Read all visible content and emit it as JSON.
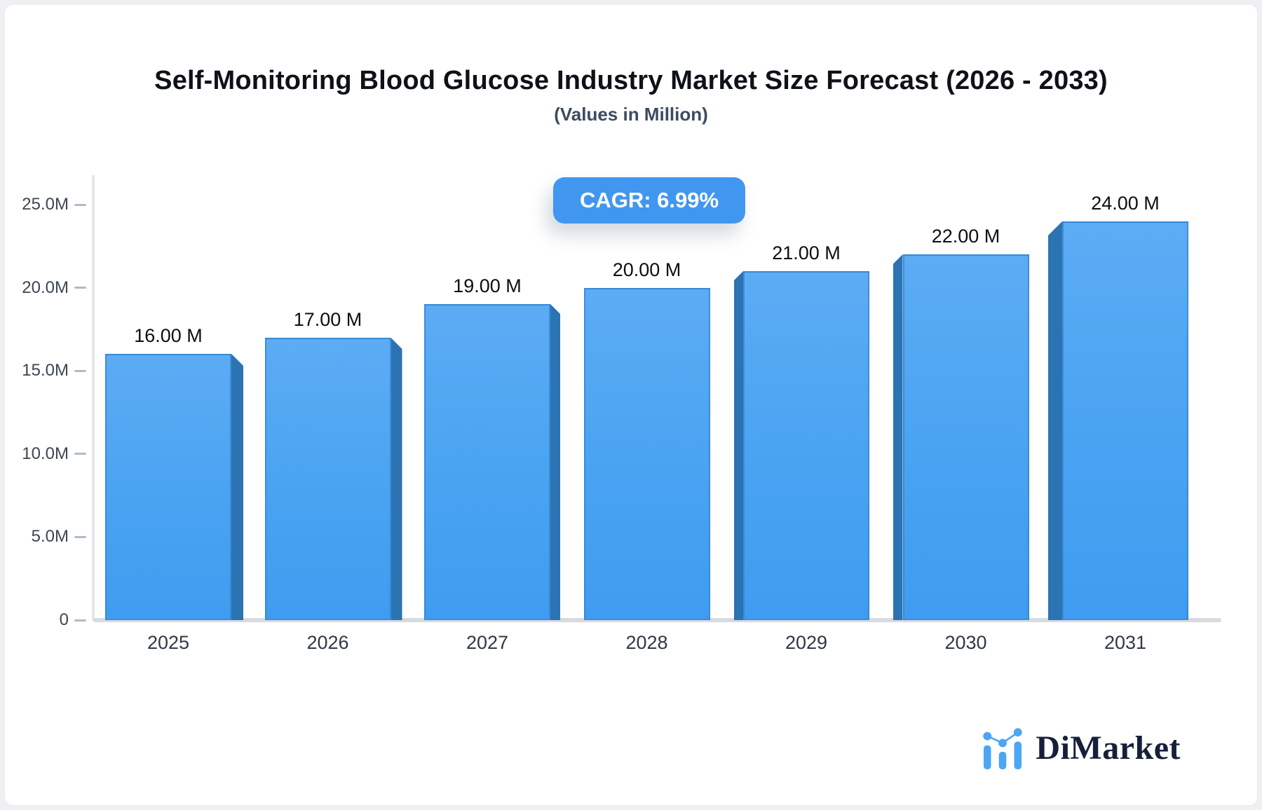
{
  "header": {
    "title": "Self-Monitoring Blood Glucose Industry Market Size Forecast (2026 - 2033)",
    "subtitle": "(Values in Million)"
  },
  "badge": {
    "label": "CAGR: 6.99%",
    "bg": "#4197ef"
  },
  "chart_data": {
    "type": "bar",
    "title": "Self-Monitoring Blood Glucose Industry Market Size Forecast (2026 - 2033)",
    "subtitle": "(Values in Million)",
    "categories": [
      "2025",
      "2026",
      "2027",
      "2028",
      "2029",
      "2030",
      "2031"
    ],
    "values_millions": [
      16,
      17,
      19,
      20,
      21,
      22,
      24
    ],
    "bar_labels": [
      "16.00 M",
      "17.00 M",
      "19.00 M",
      "20.00 M",
      "21.00 M",
      "22.00 M",
      "24.00 M"
    ],
    "unit": "Million",
    "cagr": "6.99%",
    "xlabel": "",
    "ylabel": "",
    "ylim_millions": [
      0,
      25
    ],
    "ytick_values_millions": [
      0,
      5,
      10,
      15,
      20,
      25
    ],
    "ytick_labels": [
      "0",
      "5.0M",
      "10.0M",
      "15.0M",
      "20.0M",
      "25.0M"
    ],
    "grid": false,
    "legend": false,
    "bar_color": "#47a2f1",
    "bar_side_color": "#2c73b4",
    "effect": "3d-perspective-bars"
  },
  "logo": {
    "text": "DiMarket",
    "icon": "mini-bar-chart-with-dots-icon"
  }
}
